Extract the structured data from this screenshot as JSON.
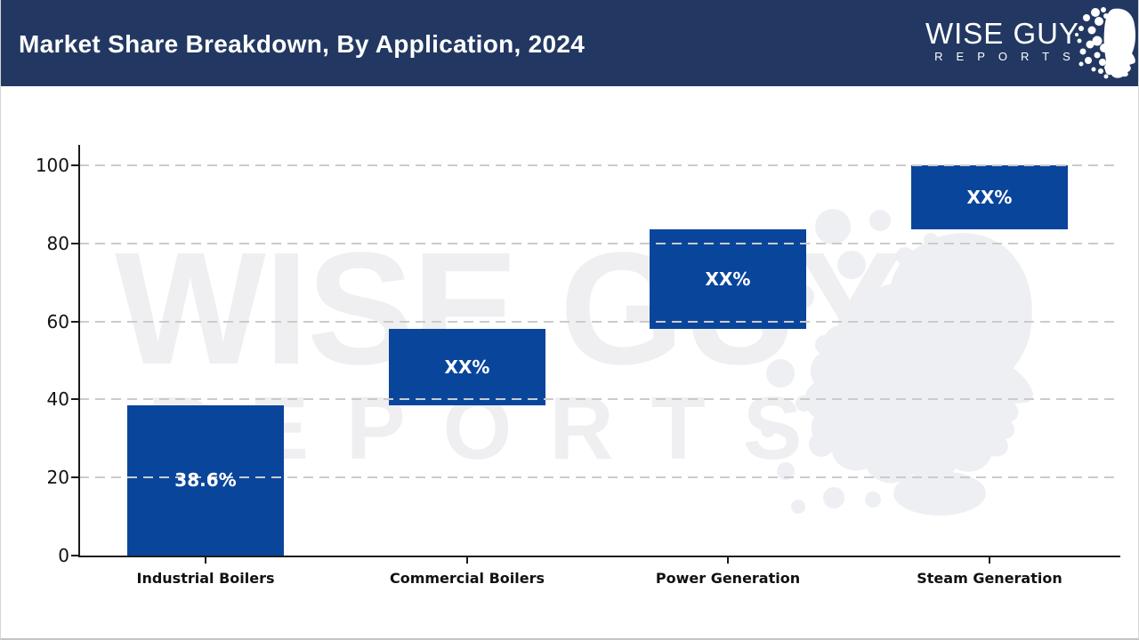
{
  "header": {
    "title": "Market Share Breakdown, By Application, 2024",
    "logo": {
      "line1": "WISE GUY",
      "line2": "REPORTS"
    }
  },
  "watermark": {
    "line1": "WISE GUY",
    "line2": "REPORTS"
  },
  "chart_data": {
    "type": "bar",
    "subtype": "waterfall-floating-bars",
    "title": "Market Share Breakdown, By Application, 2024",
    "categories": [
      "Industrial Boilers",
      "Commercial Boilers",
      "Power Generation",
      "Steam Generation"
    ],
    "segments": [
      {
        "category": "Industrial Boilers",
        "start": 0,
        "end": 38.6,
        "label": "38.6%"
      },
      {
        "category": "Commercial Boilers",
        "start": 38.6,
        "end": 58,
        "label": "XX%"
      },
      {
        "category": "Power Generation",
        "start": 58,
        "end": 83.6,
        "label": "XX%"
      },
      {
        "category": "Steam Generation",
        "start": 83.6,
        "end": 100,
        "label": "XX%"
      }
    ],
    "yticks": [
      0,
      20,
      40,
      60,
      80,
      100
    ],
    "ylim": [
      0,
      105
    ],
    "xlabel": "",
    "ylabel": "",
    "grid": "horizontal-dashed",
    "legend": "none",
    "colors": {
      "bar": "#0a459c",
      "grid": "#cbcbcb",
      "axis": "#1a1a1a",
      "bar_label_text": "#ffffff",
      "header_bg": "#223862",
      "watermark": "#efeff2"
    }
  }
}
